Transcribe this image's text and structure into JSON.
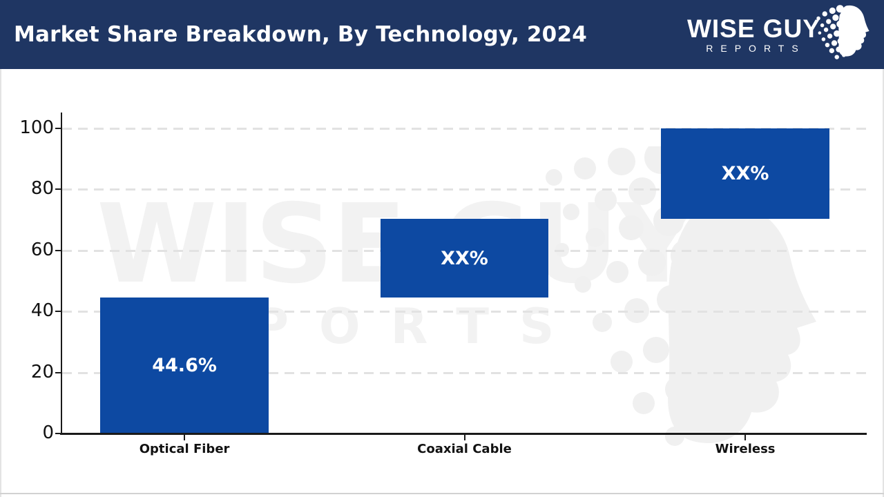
{
  "header": {
    "title": "Market Share Breakdown, By Technology, 2024",
    "brand_line1": "WISE GUY",
    "brand_line2": "REPORTS",
    "bg_color": "#1F3663"
  },
  "watermark": {
    "line1": "WISE GUY",
    "line2": "REPORTS",
    "color": "#f2f2f2"
  },
  "chart_data": {
    "type": "bar",
    "variant": "waterfall-stacked-percentage",
    "title": "Market Share Breakdown, By Technology, 2024",
    "categories": [
      "Optical Fiber",
      "Coaxial Cable",
      "Wireless"
    ],
    "segments": [
      {
        "category": "Optical Fiber",
        "start": 0,
        "end": 44.6,
        "label": "44.6%"
      },
      {
        "category": "Coaxial Cable",
        "start": 44.6,
        "end": 70.3,
        "label": "XX%"
      },
      {
        "category": "Wireless",
        "start": 70.3,
        "end": 100,
        "label": "XX%"
      }
    ],
    "xlabel": "",
    "ylabel": "",
    "ylim": [
      0,
      100
    ],
    "yticks": [
      0,
      20,
      40,
      60,
      80,
      100
    ],
    "grid": "horizontal-dashed",
    "legend": "none",
    "bar_color": "#0D49A2",
    "bar_label_color": "#FFFFFF",
    "axis_color": "#1a1a1a",
    "centers_frac": [
      0.152,
      0.5,
      0.849
    ],
    "bar_width_frac": 0.209
  }
}
